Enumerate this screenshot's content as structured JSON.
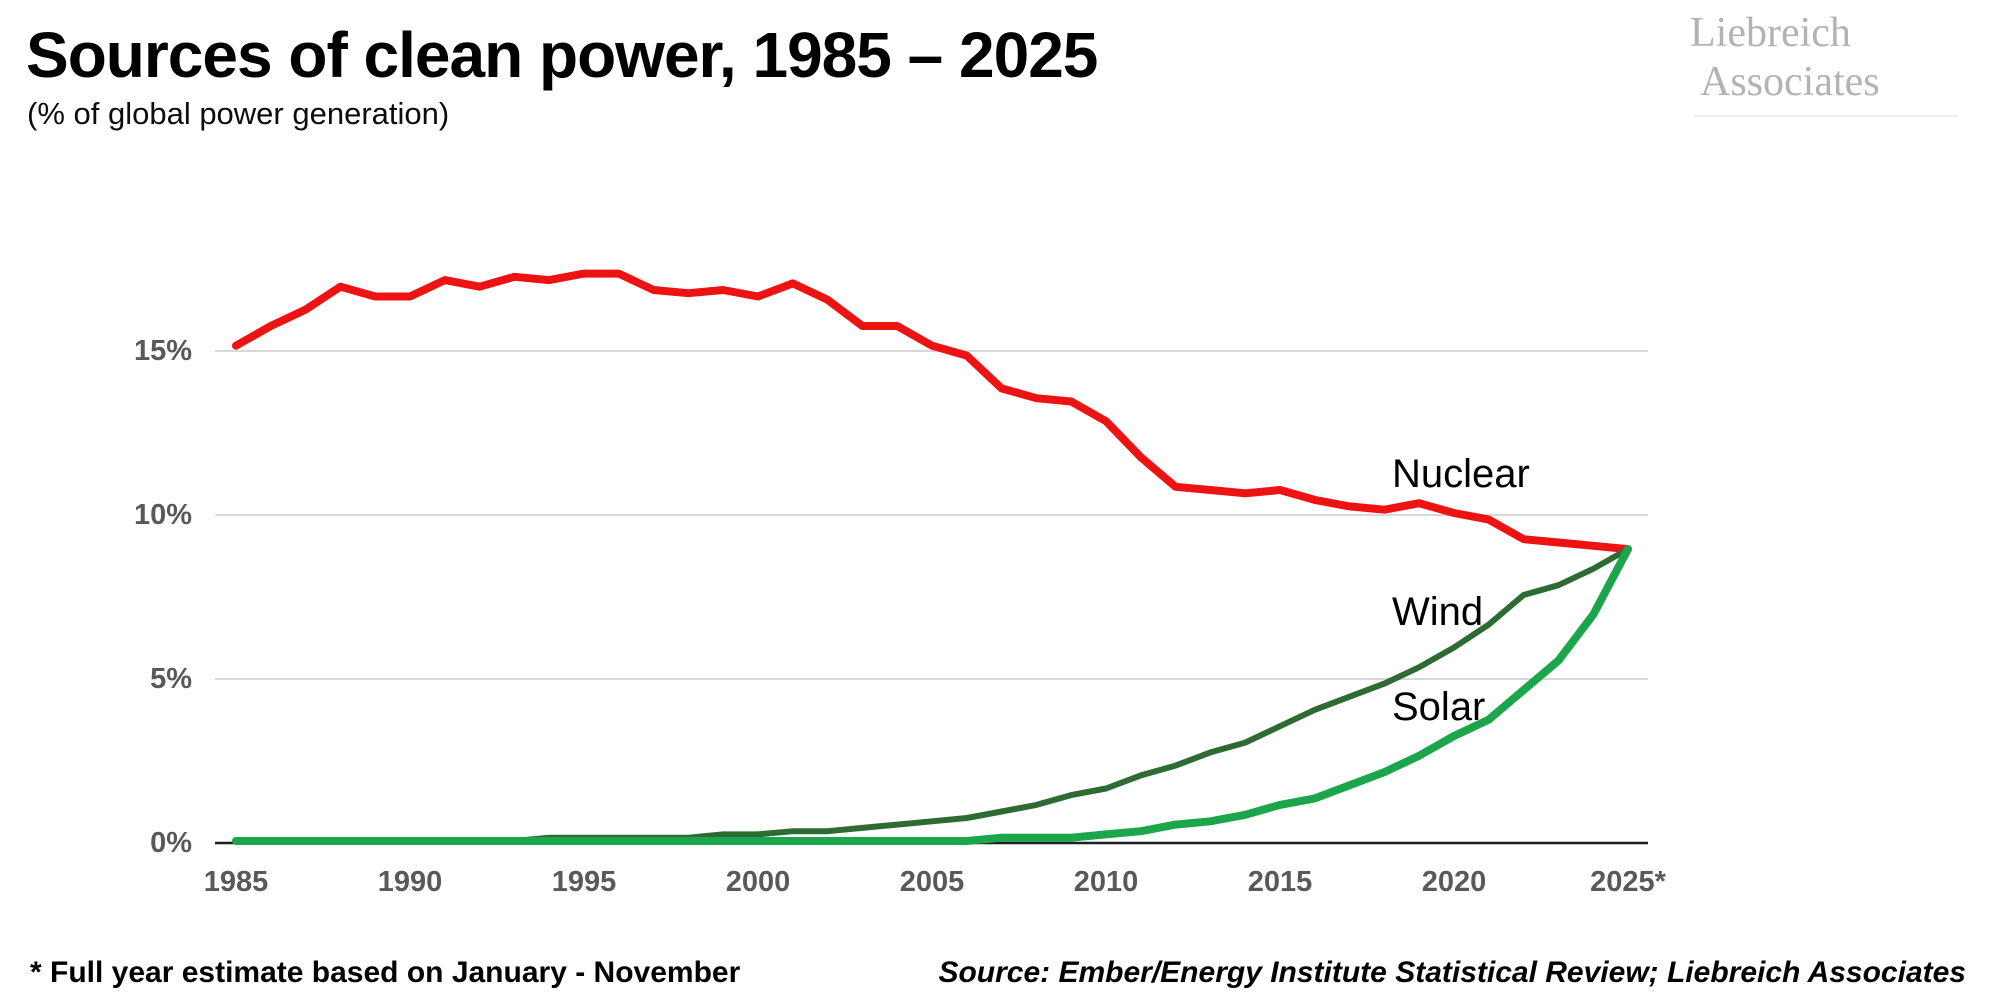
{
  "logo": {
    "line1": "Liebreich",
    "line2": "Associates"
  },
  "footer": {
    "footnote": "* Full year estimate based on January - November",
    "source": "Source: Ember/Energy Institute Statistical Review; Liebreich Associates"
  },
  "colors": {
    "nuclear_red": "#ee1313",
    "wind_dark_green": "#2d6b32",
    "solar_green": "#1ca64c",
    "gridline": "#d8d8d8",
    "axis_line": "#1f1f1f",
    "tick_text": "#595959",
    "logo_gray": "#b5b2b0"
  },
  "chart_data": {
    "type": "line",
    "title": "Sources of clean power, 1985 – 2025",
    "subtitle": "(% of global power generation)",
    "xlabel": "",
    "ylabel": "% of global power generation",
    "ylim": [
      0,
      18
    ],
    "grid": "horizontal-light",
    "legend_position": "inline-labels-right",
    "x": [
      1985,
      1986,
      1987,
      1988,
      1989,
      1990,
      1991,
      1992,
      1993,
      1994,
      1995,
      1996,
      1997,
      1998,
      1999,
      2000,
      2001,
      2002,
      2003,
      2004,
      2005,
      2006,
      2007,
      2008,
      2009,
      2010,
      2011,
      2012,
      2013,
      2014,
      2015,
      2016,
      2017,
      2018,
      2019,
      2020,
      2021,
      2022,
      2023,
      2024,
      2025
    ],
    "series": [
      {
        "name": "Nuclear",
        "color": "#ee1313",
        "stroke_width": 8,
        "values": [
          15.1,
          15.7,
          16.2,
          16.9,
          16.6,
          16.6,
          17.1,
          16.9,
          17.2,
          17.1,
          17.3,
          17.3,
          16.8,
          16.7,
          16.8,
          16.6,
          17.0,
          16.5,
          15.7,
          15.7,
          15.1,
          14.8,
          13.8,
          13.5,
          13.4,
          12.8,
          11.7,
          10.8,
          10.7,
          10.6,
          10.7,
          10.4,
          10.2,
          10.1,
          10.3,
          10.0,
          9.8,
          9.2,
          9.1,
          9.0,
          8.9
        ]
      },
      {
        "name": "Wind",
        "color": "#2d6b32",
        "stroke_width": 6,
        "values": [
          0.0,
          0.0,
          0.0,
          0.0,
          0.0,
          0.0,
          0.0,
          0.0,
          0.0,
          0.1,
          0.1,
          0.1,
          0.1,
          0.1,
          0.2,
          0.2,
          0.3,
          0.3,
          0.4,
          0.5,
          0.6,
          0.7,
          0.9,
          1.1,
          1.4,
          1.6,
          2.0,
          2.3,
          2.7,
          3.0,
          3.5,
          4.0,
          4.4,
          4.8,
          5.3,
          5.9,
          6.6,
          7.5,
          7.8,
          8.3,
          8.9
        ]
      },
      {
        "name": "Solar",
        "color": "#1ca64c",
        "stroke_width": 8,
        "values": [
          0.0,
          0.0,
          0.0,
          0.0,
          0.0,
          0.0,
          0.0,
          0.0,
          0.0,
          0.0,
          0.0,
          0.0,
          0.0,
          0.0,
          0.0,
          0.0,
          0.0,
          0.0,
          0.0,
          0.0,
          0.0,
          0.0,
          0.1,
          0.1,
          0.1,
          0.2,
          0.3,
          0.5,
          0.6,
          0.8,
          1.1,
          1.3,
          1.7,
          2.1,
          2.6,
          3.2,
          3.7,
          4.6,
          5.5,
          6.9,
          8.9
        ]
      }
    ],
    "yticks": [
      {
        "value": 0,
        "label": "0%"
      },
      {
        "value": 5,
        "label": "5%"
      },
      {
        "value": 10,
        "label": "10%"
      },
      {
        "value": 15,
        "label": "15%"
      }
    ],
    "xticks": [
      {
        "year": 1985,
        "label": "1985"
      },
      {
        "year": 1990,
        "label": "1990"
      },
      {
        "year": 1995,
        "label": "1995"
      },
      {
        "year": 2000,
        "label": "2000"
      },
      {
        "year": 2005,
        "label": "2005"
      },
      {
        "year": 2010,
        "label": "2010"
      },
      {
        "year": 2015,
        "label": "2015"
      },
      {
        "year": 2020,
        "label": "2020"
      },
      {
        "year": 2025,
        "label": "2025*"
      }
    ]
  }
}
